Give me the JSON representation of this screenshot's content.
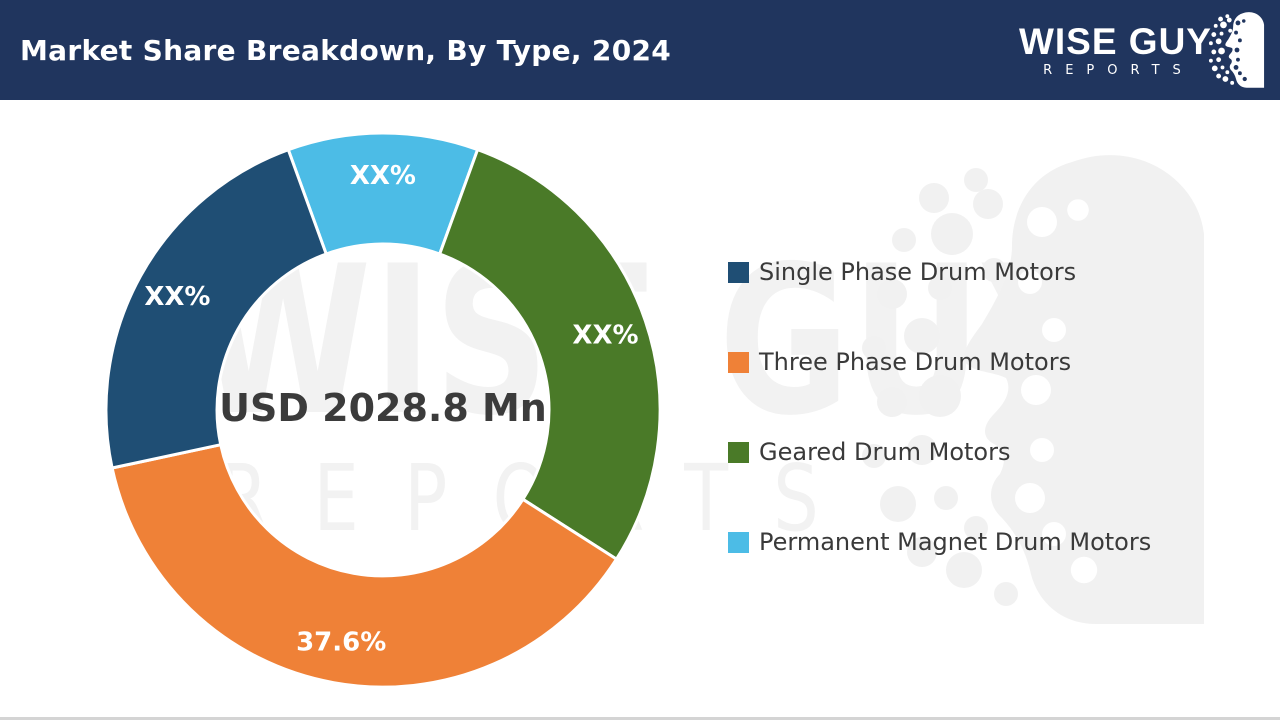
{
  "header": {
    "title": "Market Share Breakdown, By Type, 2024",
    "bg_color": "#20355e",
    "logo": {
      "line1": "WISE GUY",
      "line2": "REPORTS"
    }
  },
  "watermark": {
    "line1": "WISE GUY",
    "line2": "REPORTS"
  },
  "chart_data": {
    "type": "donut",
    "title": "Market Share Breakdown, By Type, 2024",
    "center_label": "USD 2028.8 Mn",
    "rotation_deg": -20,
    "geometry": {
      "outer_radius": 277,
      "inner_radius": 166,
      "label_radius": 235
    },
    "segments": [
      {
        "name": "Permanent Magnet Drum Motors",
        "value_pct": 11.1,
        "label": "XX%",
        "color": "#4cbce6"
      },
      {
        "name": "Geared Drum Motors",
        "value_pct": 28.5,
        "label": "XX%",
        "color": "#4a7a28"
      },
      {
        "name": "Three Phase Drum Motors",
        "value_pct": 37.6,
        "label": "37.6%",
        "color": "#ef8137"
      },
      {
        "name": "Single Phase Drum Motors",
        "value_pct": 22.8,
        "label": "XX%",
        "color": "#1f4e74"
      }
    ],
    "legend": [
      {
        "label": "Single Phase Drum Motors",
        "color": "#1f4e74"
      },
      {
        "label": "Three Phase Drum Motors",
        "color": "#ef8137"
      },
      {
        "label": "Geared Drum Motors",
        "color": "#4a7a28"
      },
      {
        "label": "Permanent Magnet Drum Motors",
        "color": "#4cbce6"
      }
    ],
    "legend_position": "right"
  }
}
